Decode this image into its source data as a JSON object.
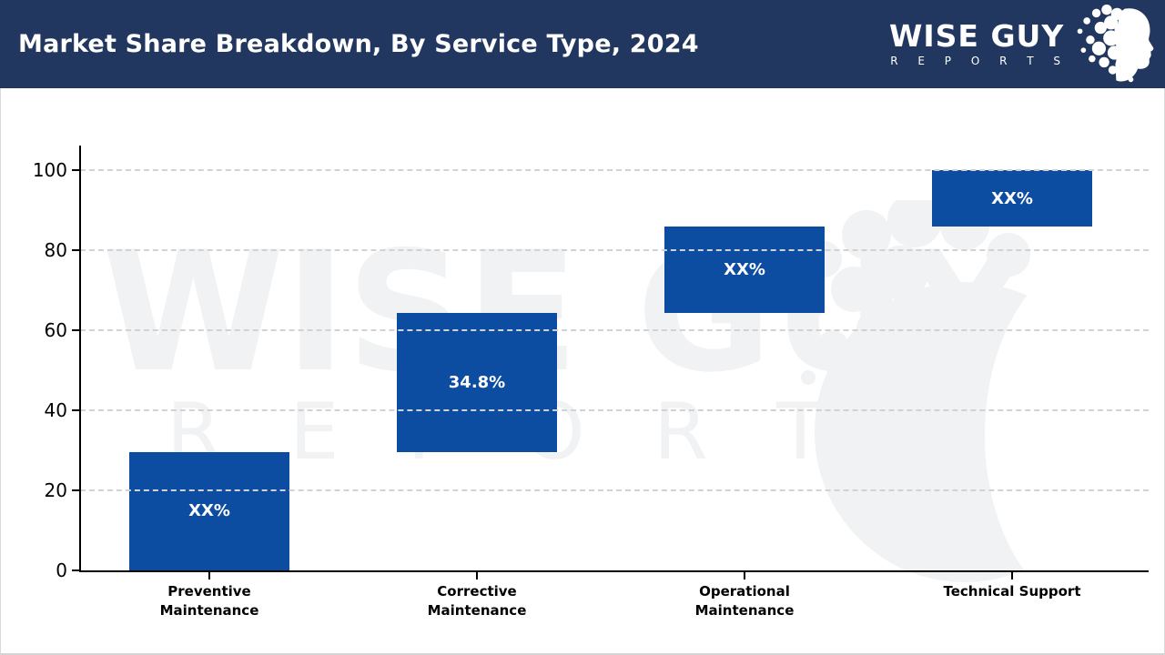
{
  "header": {
    "title": "Market Share Breakdown, By Service Type, 2024",
    "logo_line1": "WISE GUY",
    "logo_line2": "R E P O R T S",
    "logo_icon": "face-profile-dots-icon",
    "bg_color": "#21375f"
  },
  "watermark": {
    "line1": "WISE GUY",
    "line2": "R E P O R T S",
    "icon": "face-profile-dots-watermark"
  },
  "colors": {
    "header_bg": "#21375f",
    "bar": "#0d4da1",
    "bar_label": "#ffffff",
    "grid": "#d2d2d2",
    "axis": "#000000",
    "watermark": "#f1f2f4"
  },
  "chart_data": {
    "type": "bar",
    "subtype": "waterfall",
    "title": "Market Share Breakdown, By Service Type, 2024",
    "categories": [
      "Preventive Maintenance",
      "Corrective Maintenance",
      "Operational Maintenance",
      "Technical Support"
    ],
    "category_lines": [
      [
        "Preventive",
        "Maintenance"
      ],
      [
        "Corrective",
        "Maintenance"
      ],
      [
        "Operational",
        "Maintenance"
      ],
      [
        "Technical Support"
      ]
    ],
    "bars": [
      {
        "start": 0,
        "end": 29.6,
        "value": 29.6,
        "label": "XX%"
      },
      {
        "start": 29.6,
        "end": 64.4,
        "value": 34.8,
        "label": "34.8%"
      },
      {
        "start": 64.4,
        "end": 85.8,
        "value": 21.4,
        "label": "XX%"
      },
      {
        "start": 85.8,
        "end": 100.0,
        "value": 14.2,
        "label": "XX%"
      }
    ],
    "y_ticks": [
      0,
      20,
      40,
      60,
      80,
      100
    ],
    "y_tick_labels": [
      "0",
      "20",
      "40",
      "60",
      "80",
      "100"
    ],
    "ylim": [
      0,
      106
    ],
    "xlabel": "",
    "ylabel": "",
    "grid": "horizontal-dashed",
    "legend": null,
    "bar_color": "#0d4da1",
    "unit": "%"
  }
}
